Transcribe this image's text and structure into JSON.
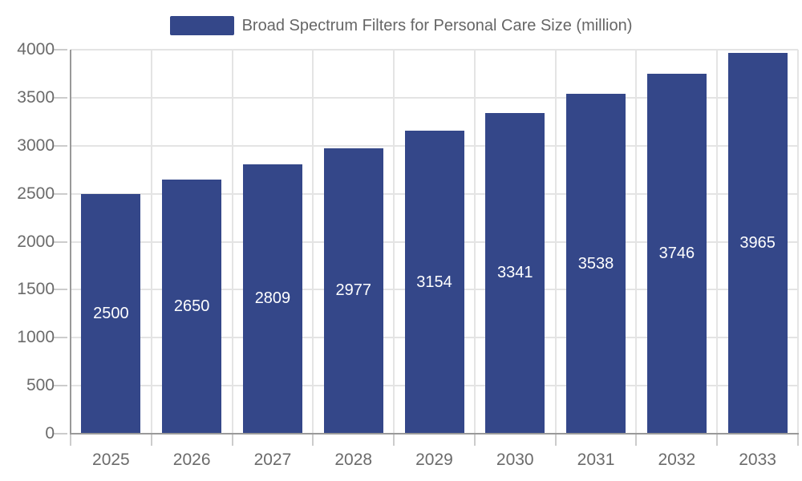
{
  "chart_data": {
    "type": "bar",
    "title": "Broad Spectrum Filters for Personal Care Size (million)",
    "legend": {
      "label": "Broad Spectrum Filters for Personal Care Size (million)",
      "position": "top-center"
    },
    "categories": [
      "2025",
      "2026",
      "2027",
      "2028",
      "2029",
      "2030",
      "2031",
      "2032",
      "2033"
    ],
    "series": [
      {
        "name": "Broad Spectrum Filters for Personal Care Size (million)",
        "values": [
          2500,
          2650,
          2809,
          2977,
          3154,
          3341,
          3538,
          3746,
          3965
        ]
      }
    ],
    "value_labels": [
      "2500",
      "2650",
      "2809",
      "2977",
      "3154",
      "3341",
      "3538",
      "3746",
      "3965"
    ],
    "value_label_position": "inside-middle",
    "xlabel": "",
    "ylabel": "",
    "ylim": [
      0,
      4000
    ],
    "ytick_step": 500,
    "yticks": [
      0,
      500,
      1000,
      1500,
      2000,
      2500,
      3000,
      3500,
      4000
    ],
    "grid": true
  },
  "style": {
    "bar_color": "#344789",
    "value_label_color": "#ffffff",
    "legend_text_color": "#666666",
    "axis_label_color": "#6b6b6b",
    "axis_line_color": "#999999",
    "tick_color": "#cccccc",
    "grid_color": "#e4e4e4",
    "background_color": "#ffffff"
  }
}
